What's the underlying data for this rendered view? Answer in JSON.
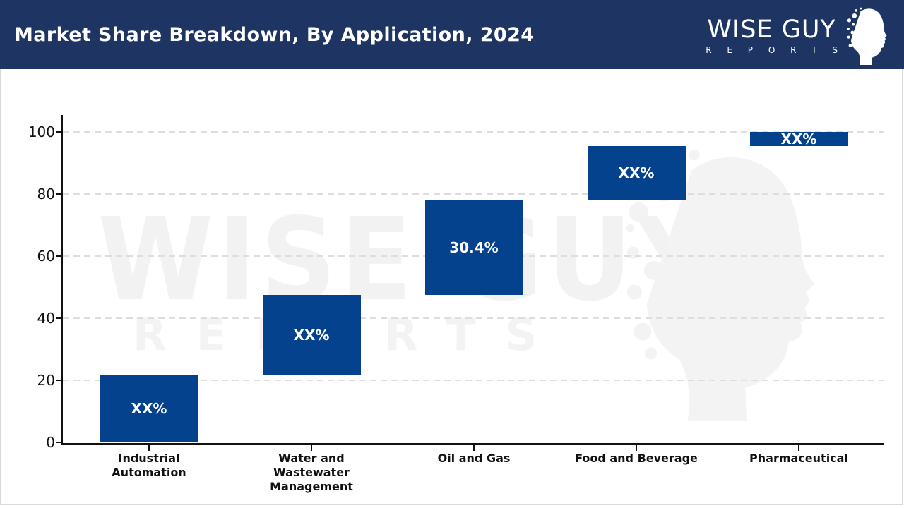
{
  "header": {
    "title": "Market Share Breakdown, By Application, 2024",
    "logo": {
      "main": "WISE GUY",
      "sub": "R E P O R T S"
    }
  },
  "watermark": {
    "main": "WISE GUY",
    "sub": "REPORTS"
  },
  "chart_data": {
    "type": "bar",
    "subtype": "waterfall",
    "title": "Market Share Breakdown, By Application, 2024",
    "xlabel": "",
    "ylabel": "",
    "ylim": [
      0,
      100
    ],
    "yticks": [
      0,
      20,
      40,
      60,
      80,
      100
    ],
    "grid": "horizontal-dashed",
    "legend": "none",
    "categories": [
      "Industrial Automation",
      "Water and Wastewater Management",
      "Oil and Gas",
      "Food and Beverage",
      "Pharmaceutical"
    ],
    "segments": [
      {
        "category": "Industrial Automation",
        "display": "Industrial\nAutomation",
        "start": 0,
        "end": 21.6,
        "value": 21.6,
        "label": "XX%"
      },
      {
        "category": "Water and Wastewater Management",
        "display": "Water and\nWastewater\nManagement",
        "start": 21.6,
        "end": 47.6,
        "value": 26.0,
        "label": "XX%"
      },
      {
        "category": "Oil and Gas",
        "display": "Oil and Gas",
        "start": 47.6,
        "end": 78.0,
        "value": 30.4,
        "label": "30.4%"
      },
      {
        "category": "Food and Beverage",
        "display": "Food and Beverage",
        "start": 78.0,
        "end": 95.5,
        "value": 17.5,
        "label": "XX%"
      },
      {
        "category": "Pharmaceutical",
        "display": "Pharmaceutical",
        "start": 95.5,
        "end": 100.0,
        "value": 4.5,
        "label": "XX%"
      }
    ],
    "colors": {
      "bar": "#05428e",
      "bar_label": "#ffffff",
      "header_bg": "#1e3563",
      "gridline": "#dedede",
      "axis": "#111111",
      "watermark": "#f2f2f2",
      "frame_border": "#d9d9d9"
    }
  }
}
